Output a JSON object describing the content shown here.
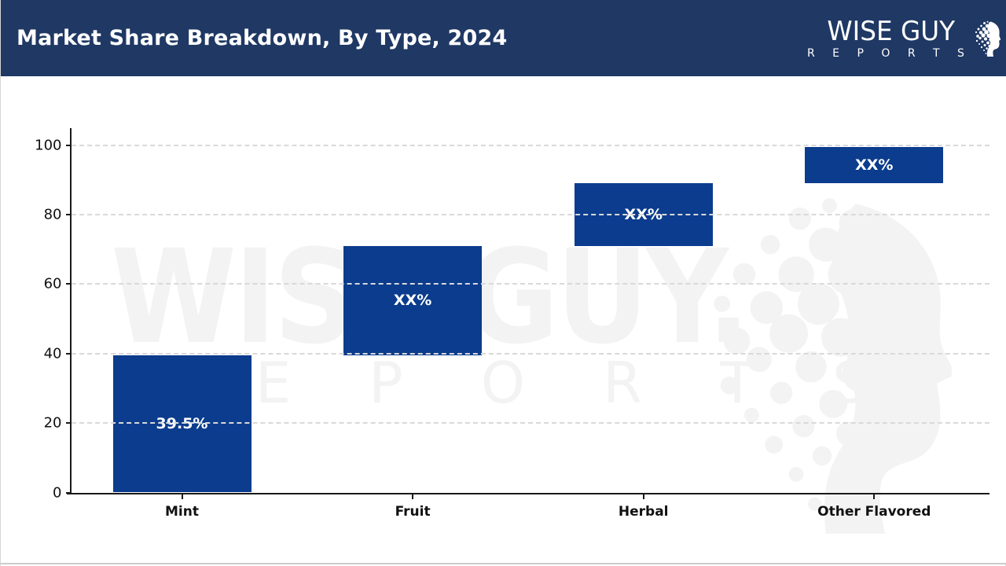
{
  "header": {
    "title": "Market Share Breakdown, By Type, 2024",
    "logo": {
      "brand_top": "WISE GUY",
      "brand_bottom": "R E P O R T S"
    }
  },
  "watermark": {
    "big_text": "WISE GUY.",
    "sub_text": "R E P O R T S"
  },
  "chart_data": {
    "type": "bar",
    "subtype": "waterfall",
    "title": "Market Share Breakdown, By Type, 2024",
    "categories": [
      "Mint",
      "Fruit",
      "Herbal",
      "Other Flavored"
    ],
    "segments": [
      {
        "category": "Mint",
        "start": 0,
        "end": 39.5,
        "label": "39.5%"
      },
      {
        "category": "Fruit",
        "start": 39.5,
        "end": 71,
        "label": "XX%"
      },
      {
        "category": "Herbal",
        "start": 71,
        "end": 89,
        "label": "XX%"
      },
      {
        "category": "Other Flavored",
        "start": 89,
        "end": 99.5,
        "label": "XX%"
      }
    ],
    "xlabel": "",
    "ylabel": "",
    "ylim": [
      0,
      105
    ],
    "yticks": [
      0,
      20,
      40,
      60,
      80,
      100
    ],
    "grid": {
      "axis": "y",
      "style": "dashed",
      "color": "#d9d9d9",
      "above_bars": true
    },
    "legend": null,
    "bar_color": "#0b3c8d",
    "bar_label_color": "#ffffff",
    "axis_color": "#1a1a1a"
  },
  "colors": {
    "header_bg": "#1f3864",
    "watermark": "#f3f3f3"
  }
}
